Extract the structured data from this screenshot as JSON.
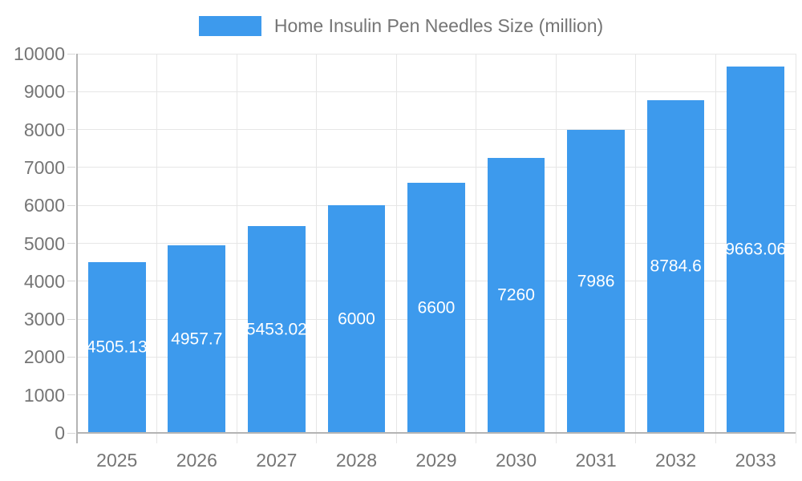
{
  "chart_data": {
    "type": "bar",
    "title": "Home Insulin Pen Needles Size (million)",
    "legend_position": "top",
    "grid": true,
    "categories": [
      "2025",
      "2026",
      "2027",
      "2028",
      "2029",
      "2030",
      "2031",
      "2032",
      "2033"
    ],
    "values": [
      4505.13,
      4957.7,
      5453.02,
      6000,
      6600,
      7260,
      7986,
      8784.6,
      9663.06
    ],
    "bar_labels": [
      "4505.13",
      "4957.7",
      "5453.02",
      "6000",
      "6600",
      "7260",
      "7986",
      "8784.6",
      "9663.06"
    ],
    "xlabel": "",
    "ylabel": "",
    "ylim": [
      0,
      10000
    ],
    "y_ticks": [
      "0",
      "1000",
      "2000",
      "3000",
      "4000",
      "5000",
      "6000",
      "7000",
      "8000",
      "9000",
      "10000"
    ],
    "colors": {
      "bar": "#3D9AED",
      "bar_label_text": "#FFFFFF",
      "axis_text": "#757575",
      "gridline": "#E6E6E6",
      "tick_mark": "#D6D6D6",
      "axis_line": "#B4B4B4",
      "background": "#FFFFFF"
    }
  }
}
